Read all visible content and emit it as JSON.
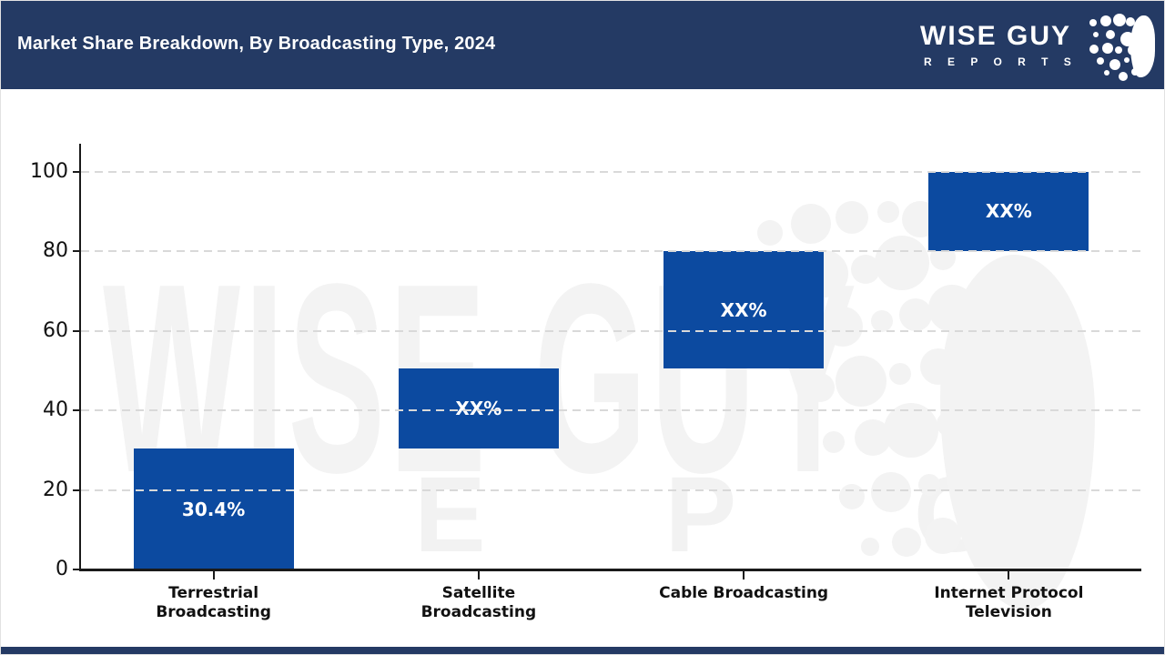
{
  "header": {
    "title": "Market Share Breakdown, By Broadcasting Type, 2024",
    "logo": {
      "line1": "WISE GUY",
      "line2": "R E P O R T S"
    }
  },
  "watermark": {
    "line1": "WISE GUY",
    "line2": "R E P O R T S"
  },
  "colors": {
    "header_bg": "#243a64",
    "bar": "#0c4aa0",
    "grid": "#d9d9d9",
    "axis": "#1a1a1a",
    "bar_label": "#ffffff",
    "watermark": "#f3f3f3"
  },
  "chart_data": {
    "type": "bar",
    "subtype": "waterfall",
    "title": "Market Share Breakdown, By Broadcasting Type, 2024",
    "xlabel": "",
    "ylabel": "",
    "ylim": [
      0,
      107
    ],
    "yticks": [
      0,
      20,
      40,
      60,
      80,
      100
    ],
    "grid": {
      "axis": "y",
      "style": "dashed"
    },
    "legend": false,
    "categories": [
      "Terrestrial Broadcasting",
      "Satellite Broadcasting",
      "Cable Broadcasting",
      "Internet Protocol Television"
    ],
    "category_lines": [
      [
        "Terrestrial",
        "Broadcasting"
      ],
      [
        "Satellite",
        "Broadcasting"
      ],
      [
        "Cable Broadcasting"
      ],
      [
        "Internet Protocol",
        "Television"
      ]
    ],
    "bars": [
      {
        "category": "Terrestrial Broadcasting",
        "start": 0,
        "end": 30.4,
        "label": "30.4%"
      },
      {
        "category": "Satellite Broadcasting",
        "start": 30.4,
        "end": 50.5,
        "label": "XX%"
      },
      {
        "category": "Cable Broadcasting",
        "start": 50.5,
        "end": 80.0,
        "label": "XX%"
      },
      {
        "category": "Internet Protocol Television",
        "start": 80.0,
        "end": 100.0,
        "label": "XX%"
      }
    ]
  }
}
